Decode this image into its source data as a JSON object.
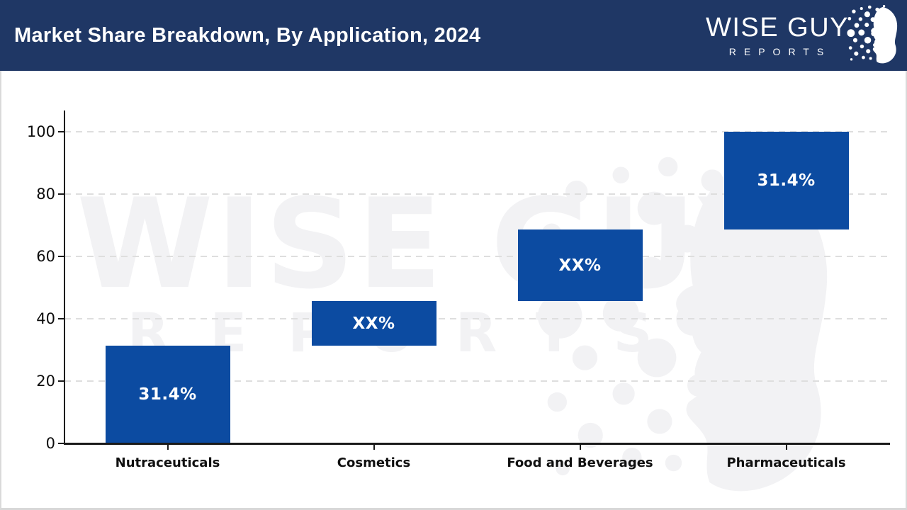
{
  "header": {
    "title": "Market Share Breakdown, By Application, 2024",
    "logo_line1": "WISE GUY",
    "logo_line2": "REPORTS"
  },
  "watermark": {
    "line1": "WISE GUY",
    "line2": "REPORTS"
  },
  "colors": {
    "header_bg": "#1f3765",
    "bar": "#0c4ba1",
    "grid": "#dedede",
    "axis": "#1a1a1a",
    "watermark": "#f2f2f4",
    "bar_label_text": "#ffffff",
    "title_text": "#ffffff",
    "tick_text": "#0d0d0d"
  },
  "chart_data": {
    "type": "bar",
    "variant": "waterfall",
    "title": "Market Share Breakdown, By Application, 2024",
    "categories": [
      "Nutraceuticals",
      "Cosmetics",
      "Food and Beverages",
      "Pharmaceuticals"
    ],
    "segments": [
      {
        "category": "Nutraceuticals",
        "start": 0,
        "end": 31.4,
        "label": "31.4%"
      },
      {
        "category": "Cosmetics",
        "start": 31.4,
        "end": 45.6,
        "label": "XX%"
      },
      {
        "category": "Food and Beverages",
        "start": 45.6,
        "end": 68.6,
        "label": "XX%"
      },
      {
        "category": "Pharmaceuticals",
        "start": 68.6,
        "end": 100,
        "label": "31.4%"
      }
    ],
    "yticks": [
      0,
      20,
      40,
      60,
      80,
      100
    ],
    "ylim": [
      0,
      105
    ],
    "xlabel": "",
    "ylabel": "",
    "grid": "horizontal-dashed",
    "legend": null
  }
}
